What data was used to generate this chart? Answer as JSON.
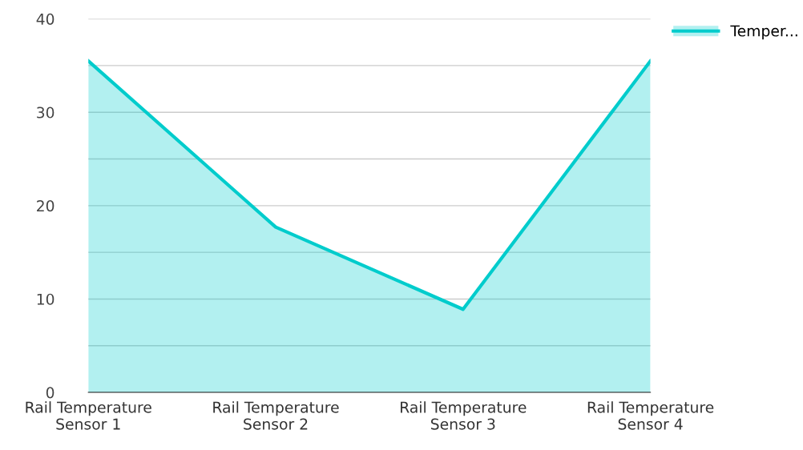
{
  "chart_data": {
    "type": "area",
    "categories": [
      "Rail Temperature\nSensor 1",
      "Rail Temperature\nSensor 2",
      "Rail Temperature\nSensor 3",
      "Rail Temperature\nSensor 4"
    ],
    "series": [
      {
        "name": "Temper...",
        "color": "#00cccc",
        "values": [
          35.5,
          17.7,
          8.9,
          35.5
        ]
      }
    ],
    "ylim": [
      0,
      40
    ],
    "yticks": [
      0,
      {
        "value": 5,
        "label": null
      },
      10,
      {
        "value": 15,
        "label": null
      },
      20,
      {
        "value": 25,
        "label": null
      },
      30,
      {
        "value": 35,
        "label": null
      },
      40
    ],
    "grid": "y",
    "legend": "top right"
  }
}
